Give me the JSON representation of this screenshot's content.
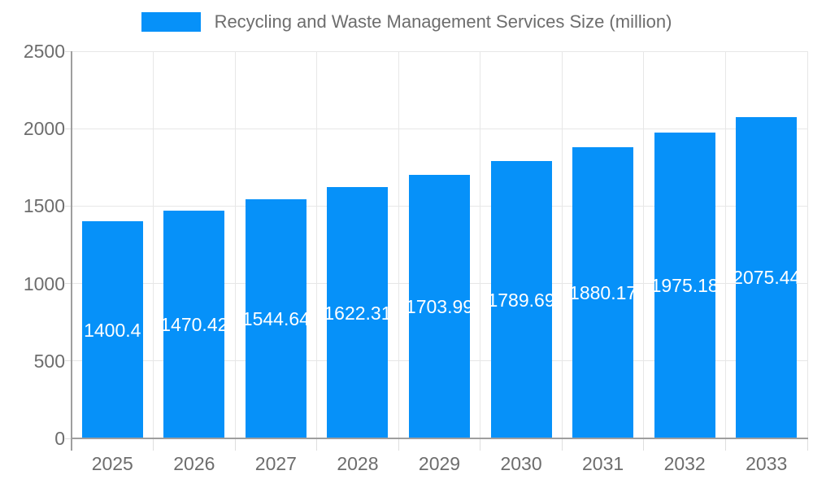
{
  "legend": {
    "label": "Recycling and Waste Management Services Size (million)"
  },
  "chart_data": {
    "type": "bar",
    "title": "Recycling and Waste Management Services Size (million)",
    "categories": [
      "2025",
      "2026",
      "2027",
      "2028",
      "2029",
      "2030",
      "2031",
      "2032",
      "2033"
    ],
    "values": [
      1400.4,
      1470.42,
      1544.64,
      1622.31,
      1703.99,
      1789.69,
      1880.17,
      1975.18,
      2075.44
    ],
    "xlabel": "",
    "ylabel": "",
    "ylim": [
      0,
      2500
    ],
    "yticks": [
      0,
      500,
      1000,
      1500,
      2000,
      2500
    ],
    "grid": true,
    "legend_position": "top-center",
    "data_labels": "inside-center-white"
  },
  "colors": {
    "bar": "#0691f9",
    "grid": "#e7e7e7",
    "tick": "#dedede",
    "axis": "#9e9e9e",
    "text": "#6d6d6d",
    "data_label": "#ffffff"
  }
}
